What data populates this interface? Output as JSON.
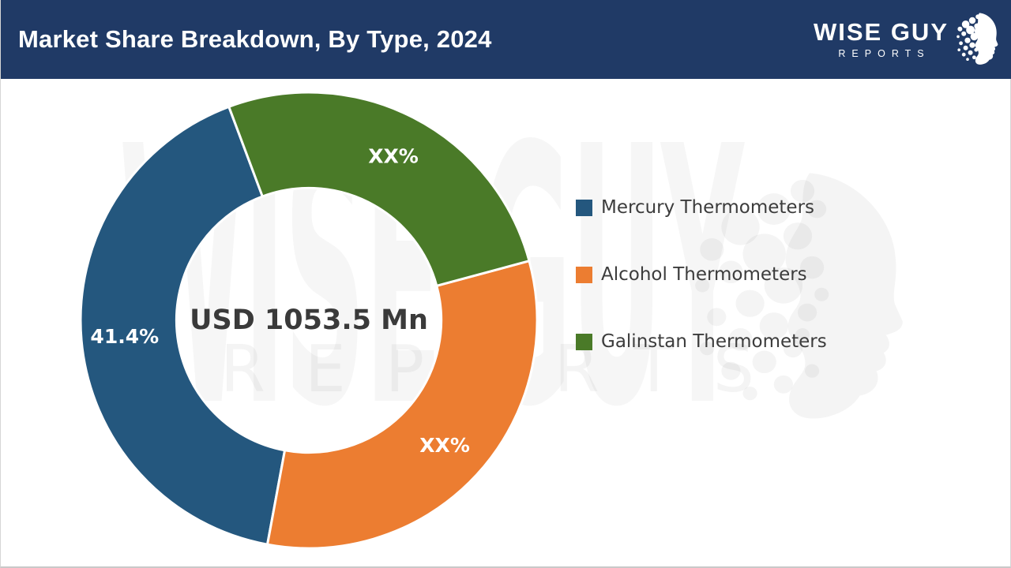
{
  "header": {
    "title": "Market Share Breakdown, By Type, 2024",
    "logo": {
      "brand": "WISE GUY",
      "sub": "REPORTS"
    }
  },
  "watermark": {
    "brand": "WISE GUY",
    "sub": "REPORTS"
  },
  "colors": {
    "header_background": "#203A66",
    "header_text": "#FFFFFF",
    "center_text": "#3A3A3A",
    "legend_text": "#3C3C3C",
    "slice_gap": "#FFFFFF"
  },
  "chart_data": {
    "type": "pie",
    "subtype": "donut",
    "title": "Market Share Breakdown, By Type, 2024",
    "center_text": "USD 1053.5 Mn",
    "start_angle_deg": 110.5,
    "direction": "counterclockwise",
    "inner_radius_ratio": 0.58,
    "label_radius_ratio": 0.81,
    "legend_position": "right",
    "series": [
      {
        "name": "Mercury Thermometers",
        "value": 41.4,
        "display_label": "41.4%",
        "color": "#24577E"
      },
      {
        "name": "Alcohol Thermometers",
        "value": 32.1,
        "display_label": "XX%",
        "color": "#EC7D31"
      },
      {
        "name": "Galinstan Thermometers",
        "value": 26.5,
        "display_label": "XX%",
        "color": "#4A7A28"
      }
    ]
  }
}
